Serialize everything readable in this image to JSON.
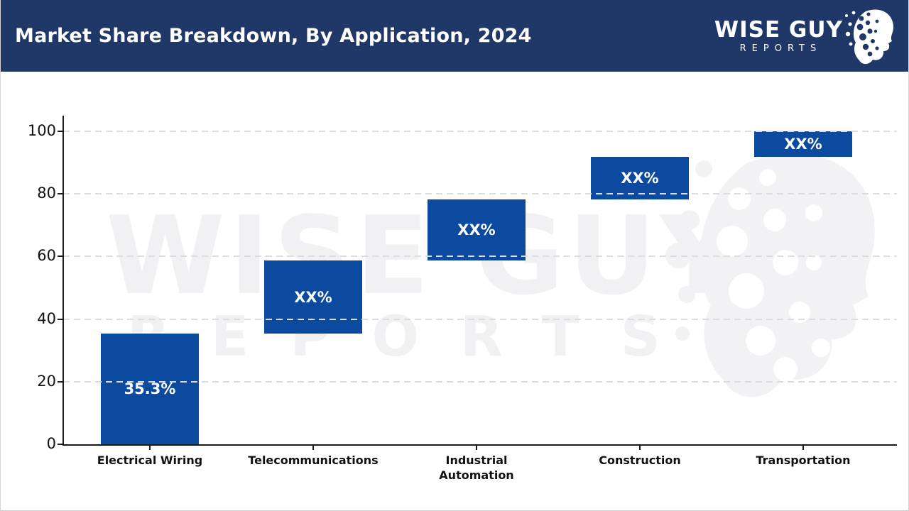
{
  "header": {
    "title": "Market Share Breakdown, By Application, 2024",
    "background_color": "#1f3868",
    "logo": {
      "line1": "WISE GUY",
      "line2": "REPORTS"
    }
  },
  "watermark": {
    "line1": "WISE GUY",
    "line2": "REPORTS"
  },
  "chart_data": {
    "type": "bar",
    "subtype": "floating-waterfall",
    "title": "Market Share Breakdown, By Application, 2024",
    "categories": [
      "Electrical Wiring",
      "Telecommunications",
      "Industrial Automation",
      "Construction",
      "Transportation"
    ],
    "segments": [
      {
        "category": "Electrical Wiring",
        "start": 0,
        "end": 35.3,
        "label": "35.3%"
      },
      {
        "category": "Telecommunications",
        "start": 35.3,
        "end": 58.8,
        "label": "XX%"
      },
      {
        "category": "Industrial Automation",
        "start": 58.8,
        "end": 78.2,
        "label": "XX%"
      },
      {
        "category": "Construction",
        "start": 78.2,
        "end": 91.8,
        "label": "XX%"
      },
      {
        "category": "Transportation",
        "start": 91.8,
        "end": 100,
        "label": "XX%"
      }
    ],
    "y_ticks": [
      0,
      20,
      40,
      60,
      80,
      100
    ],
    "ylim": [
      0,
      105
    ],
    "xlabel": "",
    "ylabel": "",
    "grid": "horizontal-dashed",
    "legend": "none",
    "bar_color": "#0c4aa0",
    "bar_label_color": "#ffffff"
  }
}
